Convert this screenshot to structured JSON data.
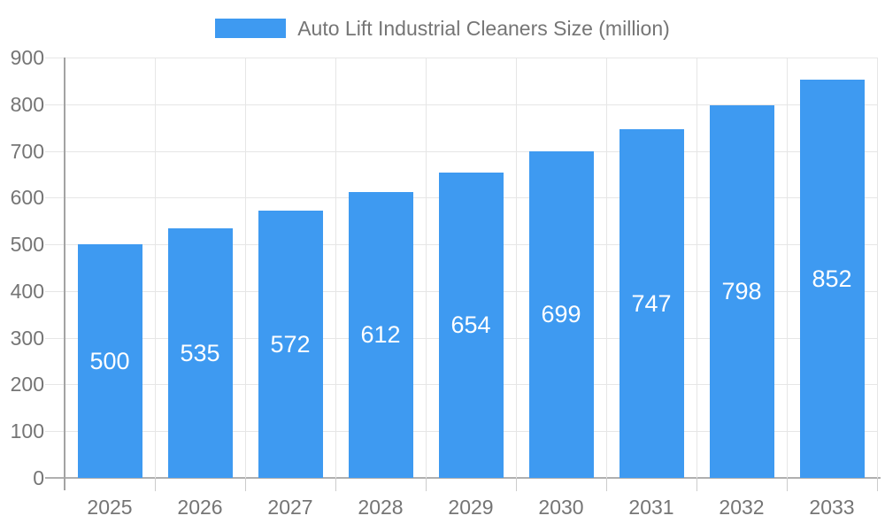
{
  "legend": {
    "label": "Auto Lift Industrial Cleaners Size (million)",
    "swatch_color": "#3e9af1"
  },
  "chart_data": {
    "type": "bar",
    "title": "Auto Lift Industrial Cleaners Size (million)",
    "series_name": "Auto Lift Industrial Cleaners Size (million)",
    "categories": [
      "2025",
      "2026",
      "2027",
      "2028",
      "2029",
      "2030",
      "2031",
      "2032",
      "2033"
    ],
    "values": [
      500,
      535,
      572,
      612,
      654,
      699,
      747,
      798,
      852
    ],
    "value_labels": [
      "500",
      "535",
      "572",
      "612",
      "654",
      "699",
      "747",
      "798",
      "852"
    ],
    "xlabel": "",
    "ylabel": "",
    "ylim": [
      0,
      900
    ],
    "yticks": [
      0,
      100,
      200,
      300,
      400,
      500,
      600,
      700,
      800,
      900
    ],
    "grid": true,
    "legend_position": "top",
    "colors": {
      "bar": "#3e9af1",
      "annotation_text": "#ffffff",
      "axis_text": "#757575",
      "gridline": "#e6e6e6",
      "baseline": "#b0b0b0",
      "axis_line": "#a3a3a3"
    }
  }
}
